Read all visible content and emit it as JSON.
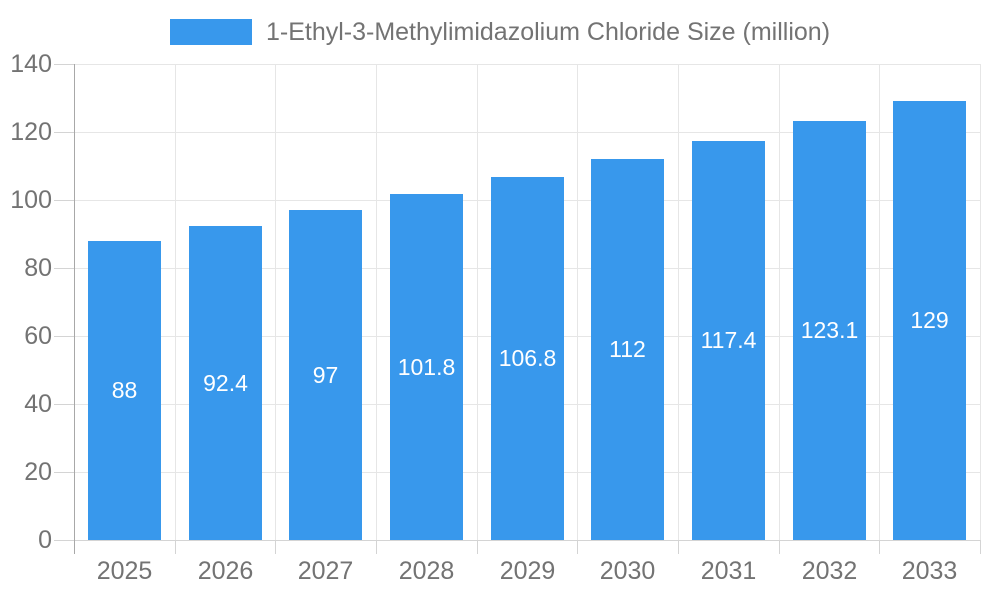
{
  "chart_data": {
    "type": "bar",
    "title": "1-Ethyl-3-Methylimidazolium Chloride Size (million)",
    "legend_position": "top",
    "categories": [
      "2025",
      "2026",
      "2027",
      "2028",
      "2029",
      "2030",
      "2031",
      "2032",
      "2033"
    ],
    "values": [
      88,
      92.4,
      97,
      101.8,
      106.8,
      112,
      117.4,
      123.1,
      129
    ],
    "value_labels": [
      "88",
      "92.4",
      "97",
      "101.8",
      "106.8",
      "112",
      "117.4",
      "123.1",
      "129"
    ],
    "xlabel": "",
    "ylabel": "",
    "ylim": [
      0,
      140
    ],
    "yticks": [
      0,
      20,
      40,
      60,
      80,
      100,
      120,
      140
    ],
    "grid": true,
    "colors": {
      "bar": "#3898EC",
      "value_label": "#FFFFFF",
      "axis_text": "#737373",
      "legend_text": "#737373",
      "grid_line": "#E6E6E6",
      "tick_line": "#D4D4D4",
      "axis_line": "#A8A8A8",
      "background": "#FFFFFF"
    }
  }
}
